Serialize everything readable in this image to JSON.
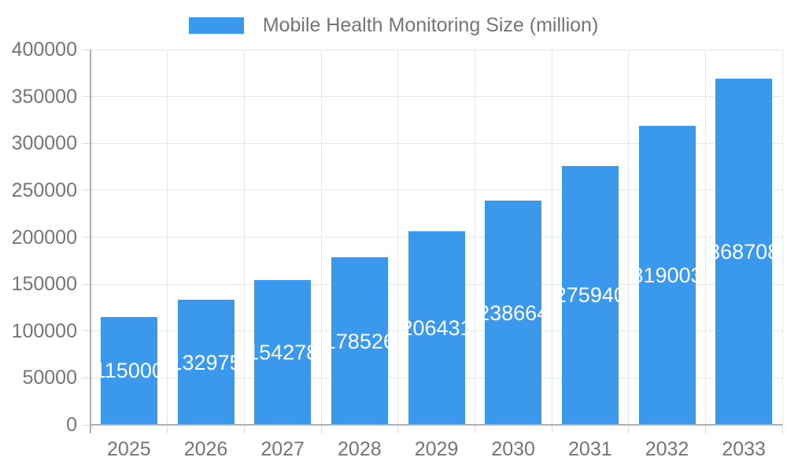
{
  "chart_data": {
    "type": "bar",
    "title": "Mobile Health Monitoring Size (million)",
    "legend_entries": [
      "Mobile Health Monitoring Size (million)"
    ],
    "legend_position": "top-center",
    "categories": [
      "2025",
      "2026",
      "2027",
      "2028",
      "2029",
      "2030",
      "2031",
      "2032",
      "2033"
    ],
    "values": [
      115000,
      132975,
      154278,
      178526,
      206431,
      238664,
      275940,
      319003,
      368708
    ],
    "yticks": [
      0,
      50000,
      100000,
      150000,
      200000,
      250000,
      300000,
      350000,
      400000
    ],
    "ylim": [
      0,
      400000
    ],
    "xlabel": "",
    "ylabel": "",
    "grid": true,
    "colors": {
      "bar": "#3a99ec",
      "bar_value_label": "#ffffff",
      "axis_text": "#757575",
      "legend_text": "#757575",
      "gridline": "#e6e6e6",
      "axis_line": "#b0b0b0",
      "tick_mark": "#dcdcdc",
      "background": "#ffffff"
    }
  }
}
